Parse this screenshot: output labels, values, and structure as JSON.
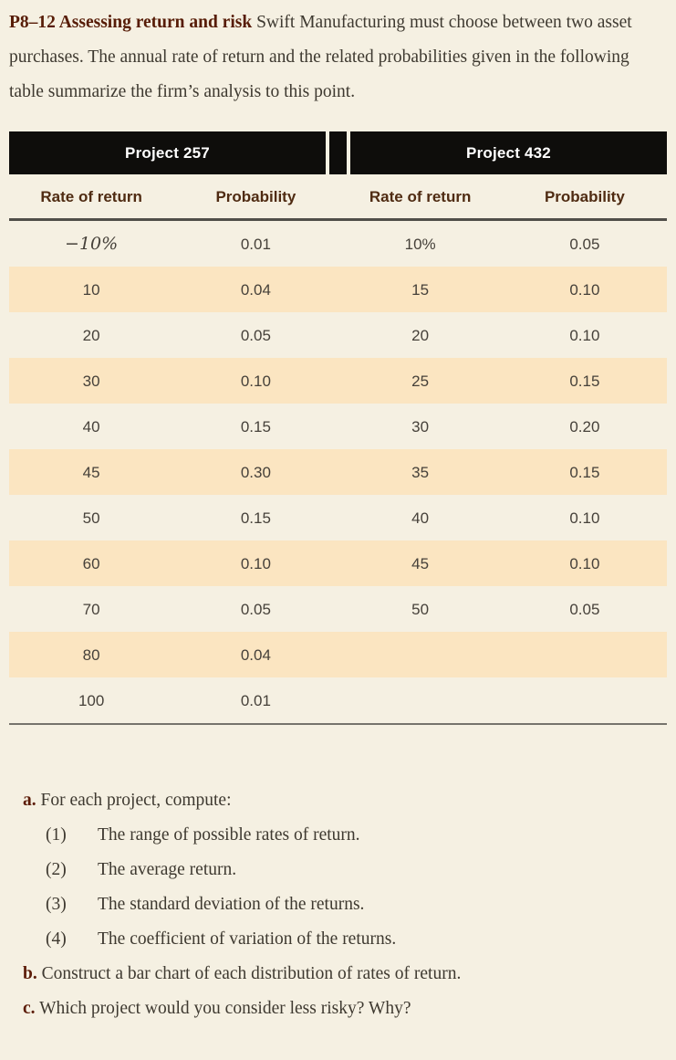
{
  "problem": {
    "heading": "P8–12 Assessing return and risk",
    "intro": "Swift Manufacturing must choose between two asset purchases. The annual rate of return and the related probabilities given in the following table summarize the firm’s analysis to this point."
  },
  "table": {
    "groups": [
      {
        "label": "Project 257"
      },
      {
        "label": "Project 432"
      }
    ],
    "columns": [
      "Rate of return",
      "Probability",
      "Rate of return",
      "Probability"
    ],
    "rows": [
      [
        "−10%",
        "0.01",
        "10%",
        "0.05"
      ],
      [
        "10",
        "0.04",
        "15",
        "0.10"
      ],
      [
        "20",
        "0.05",
        "20",
        "0.10"
      ],
      [
        "30",
        "0.10",
        "25",
        "0.15"
      ],
      [
        "40",
        "0.15",
        "30",
        "0.20"
      ],
      [
        "45",
        "0.30",
        "35",
        "0.15"
      ],
      [
        "50",
        "0.15",
        "40",
        "0.10"
      ],
      [
        "60",
        "0.10",
        "45",
        "0.10"
      ],
      [
        "70",
        "0.05",
        "50",
        "0.05"
      ],
      [
        "80",
        "0.04",
        "",
        ""
      ],
      [
        "100",
        "0.01",
        "",
        ""
      ]
    ]
  },
  "questions": {
    "a": {
      "label": "a.",
      "text": "For each project, compute:",
      "items": [
        {
          "num": "(1)",
          "text": "The range of possible rates of return."
        },
        {
          "num": "(2)",
          "text": "The average return."
        },
        {
          "num": "(3)",
          "text": "The standard deviation of the returns."
        },
        {
          "num": "(4)",
          "text": "The coefficient of variation of the returns."
        }
      ]
    },
    "b": {
      "label": "b.",
      "text": "Construct a bar chart of each distribution of rates of return."
    },
    "c": {
      "label": "c.",
      "text": "Which project would you consider less risky? Why?"
    }
  },
  "colors": {
    "page_background": "#f5f0e2",
    "row_stripe": "#fbe5c1",
    "header_bar": "#0e0d0b",
    "accent_maroon": "#571c07",
    "column_header_text": "#4f2b12"
  }
}
